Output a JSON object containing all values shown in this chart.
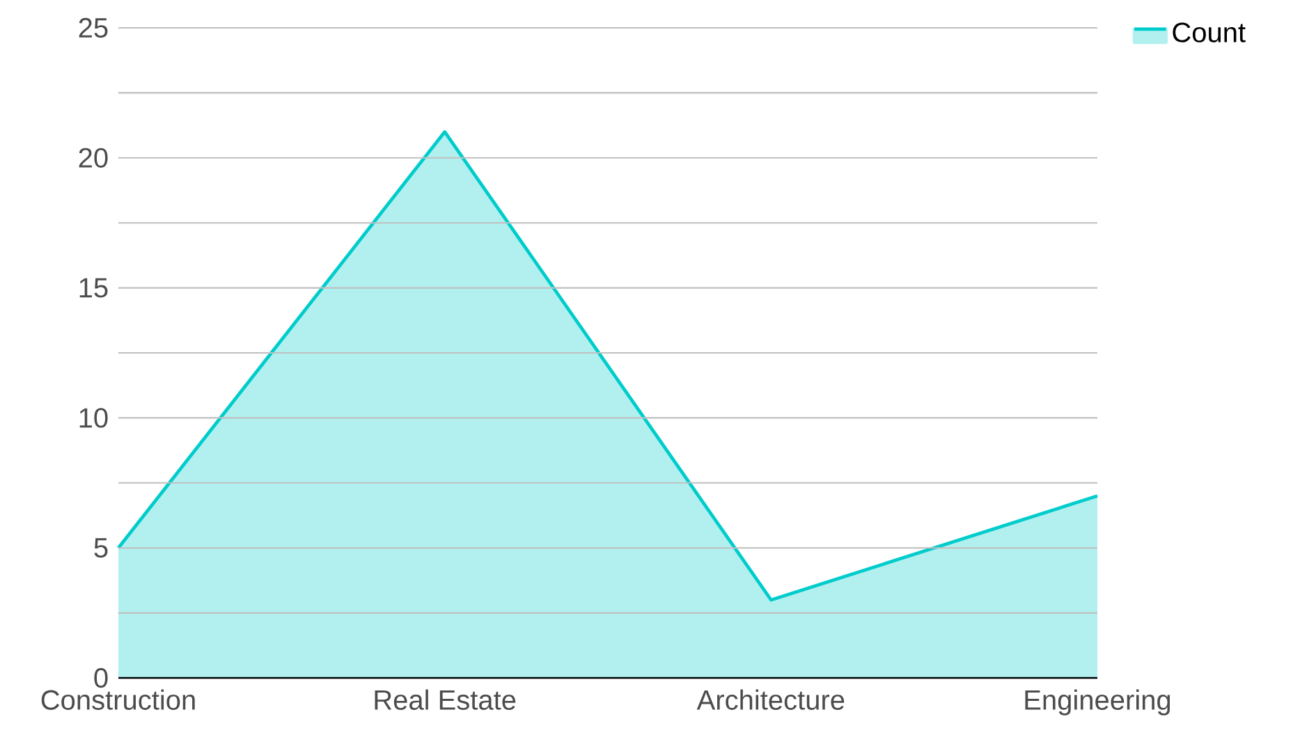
{
  "chart_data": {
    "type": "area",
    "categories": [
      "Construction",
      "Real Estate",
      "Architecture",
      "Engineering"
    ],
    "series": [
      {
        "name": "Count",
        "color": "#00cccc",
        "values": [
          5,
          21,
          3,
          7
        ]
      }
    ],
    "ylim": [
      0,
      25
    ],
    "yticks": [
      0,
      {
        "value": 2.5,
        "label": null
      },
      5,
      {
        "value": 7.5,
        "label": null
      },
      10,
      {
        "value": 12.5,
        "label": null
      },
      15,
      {
        "value": 17.5,
        "label": null
      },
      20,
      {
        "value": 22.5,
        "label": null
      },
      25
    ],
    "grid": "y",
    "legend": "top right"
  }
}
